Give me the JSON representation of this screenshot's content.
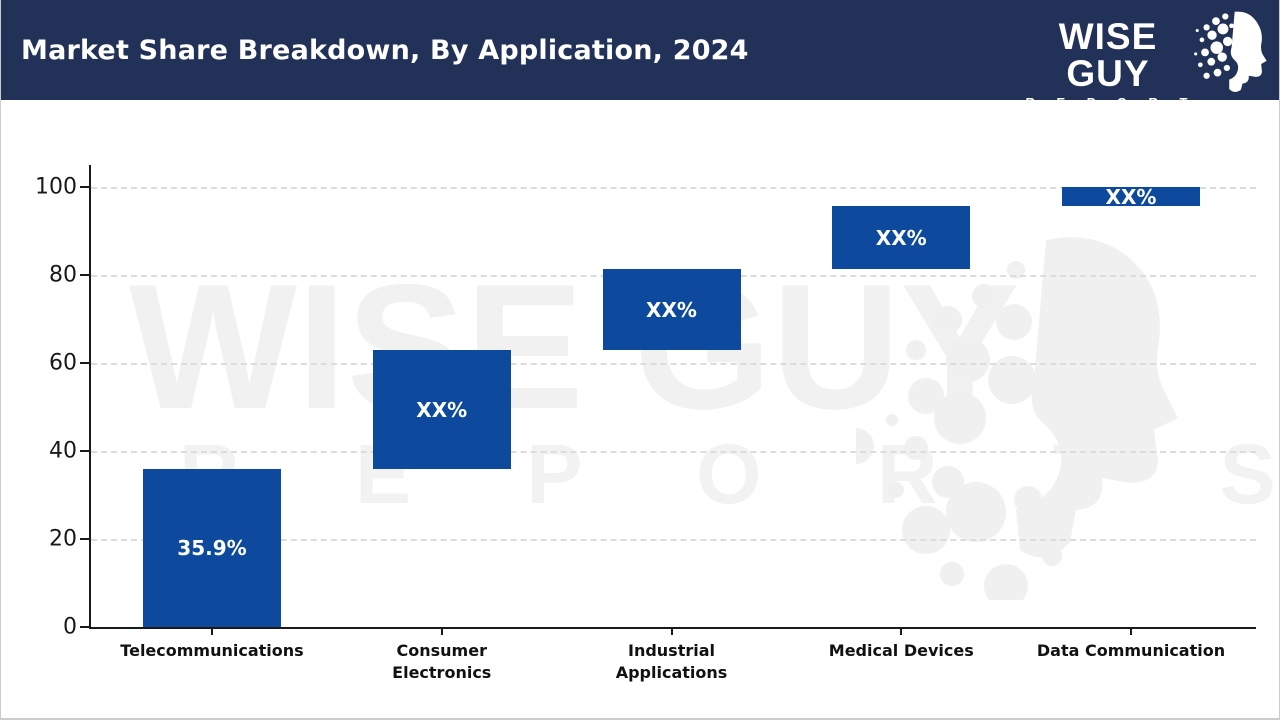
{
  "header": {
    "title": "Market Share Breakdown, By Application, 2024",
    "logo": {
      "line1": "WISE GUY",
      "line2": "R E P O R T S"
    }
  },
  "watermark": {
    "line1": "WISE GUY",
    "line2": "R E P O R T S"
  },
  "chart_data": {
    "type": "bar",
    "subtype": "waterfall",
    "title": "Market Share Breakdown, By Application, 2024",
    "categories": [
      "Telecommunications",
      "Consumer Electronics",
      "Industrial Applications",
      "Medical Devices",
      "Data Communication"
    ],
    "tick_labels_wrapped": [
      [
        "Telecommunications"
      ],
      [
        "Consumer",
        "Electronics"
      ],
      [
        "Industrial",
        "Applications"
      ],
      [
        "Medical Devices"
      ],
      [
        "Data Communication"
      ]
    ],
    "series": [
      {
        "name": "Market Share (%)",
        "starts": [
          0,
          35.9,
          62.9,
          81.3,
          95.6
        ],
        "ends": [
          35.9,
          62.9,
          81.3,
          95.6,
          100
        ]
      }
    ],
    "bar_labels": [
      "35.9%",
      "XX%",
      "XX%",
      "XX%",
      "XX%"
    ],
    "xlabel": "",
    "ylabel": "",
    "ylim": [
      0,
      100
    ],
    "yticks": [
      0,
      20,
      40,
      60,
      80,
      100
    ],
    "grid": "horizontal-dashed",
    "legend": "none",
    "bar_color": "#0d4a9e",
    "bar_label_color": "#ffffff"
  }
}
